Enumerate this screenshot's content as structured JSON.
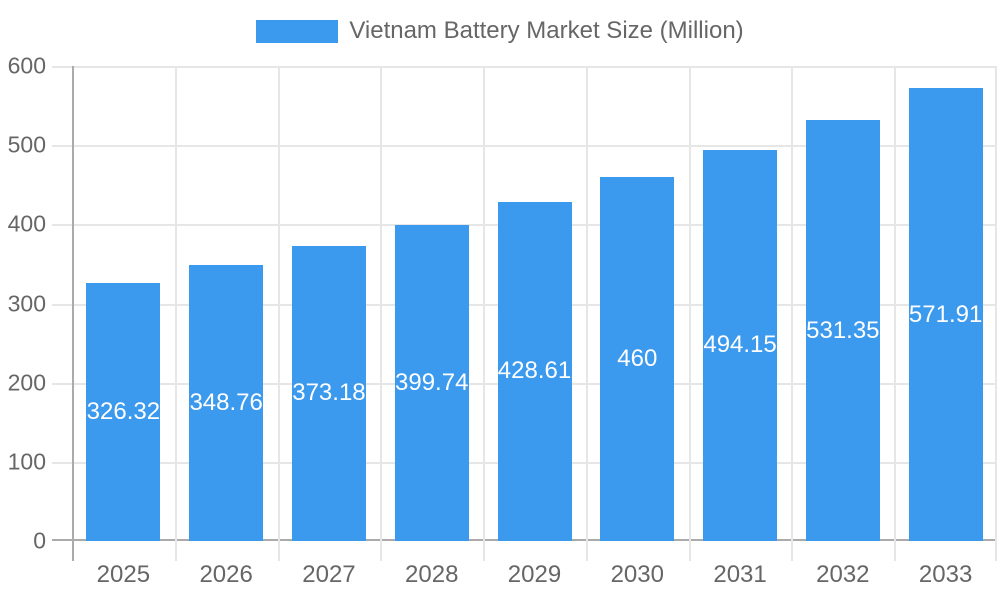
{
  "legend": {
    "label": "Vietnam Battery Market Size (Million)"
  },
  "chart_data": {
    "type": "bar",
    "title": "Vietnam Battery Market Size (Million)",
    "categories": [
      "2025",
      "2026",
      "2027",
      "2028",
      "2029",
      "2030",
      "2031",
      "2032",
      "2033"
    ],
    "values": [
      326.32,
      348.76,
      373.18,
      399.74,
      428.61,
      460,
      494.15,
      531.35,
      571.91
    ],
    "value_labels": [
      "326.32",
      "348.76",
      "373.18",
      "399.74",
      "428.61",
      "460",
      "494.15",
      "531.35",
      "571.91"
    ],
    "xlabel": "",
    "ylabel": "",
    "ylim": [
      0,
      600
    ],
    "ytick_step": 100,
    "ytick_labels": [
      "0",
      "100",
      "200",
      "300",
      "400",
      "500",
      "600"
    ],
    "grid": true,
    "legend_position": "top",
    "colors": {
      "bar": "#3b99ee",
      "bar_value_label": "#ffffff",
      "axis_text": "#666666",
      "gridline": "#e6e6e6",
      "axis_line": "#ababab",
      "background": "#ffffff"
    }
  }
}
